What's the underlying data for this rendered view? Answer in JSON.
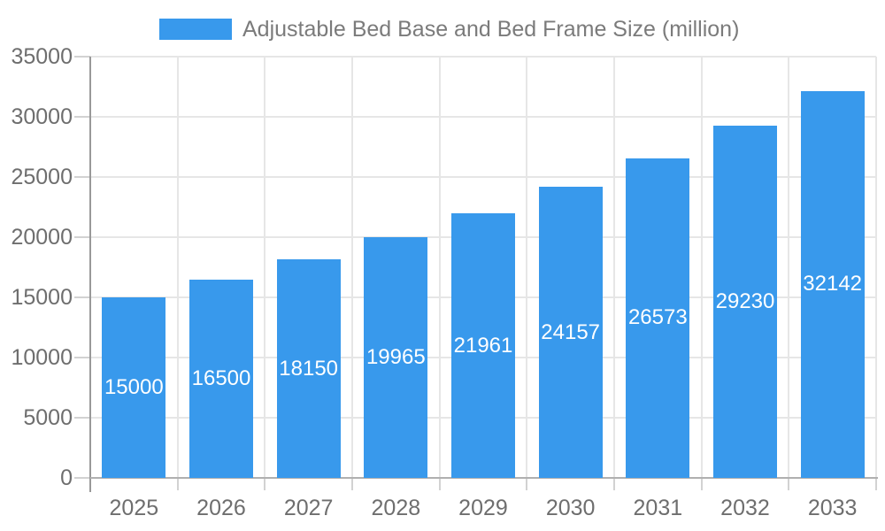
{
  "chart_data": {
    "type": "bar",
    "title": "Adjustable Bed Base and Bed Frame Size (million)",
    "categories": [
      "2025",
      "2026",
      "2027",
      "2028",
      "2029",
      "2030",
      "2031",
      "2032",
      "2033"
    ],
    "values": [
      15000,
      16500,
      18150,
      19965,
      21961,
      24157,
      26573,
      29230,
      32142
    ],
    "xlabel": "",
    "ylabel": "",
    "ylim": [
      0,
      35000
    ],
    "yticks": [
      0,
      5000,
      10000,
      15000,
      20000,
      25000,
      30000,
      35000
    ],
    "grid": true,
    "legend_position": "top",
    "bar_color": "#3899ec",
    "value_label_color": "#ffffff",
    "axis_label_color": "#6e6e6e",
    "legend_text_color": "#7b7b7b",
    "gridline_color": "#e6e6e6",
    "axis_line_color": "#999999",
    "x_axis_line_color": "#b0b0b0",
    "tick_color": "#d2d2d2"
  }
}
